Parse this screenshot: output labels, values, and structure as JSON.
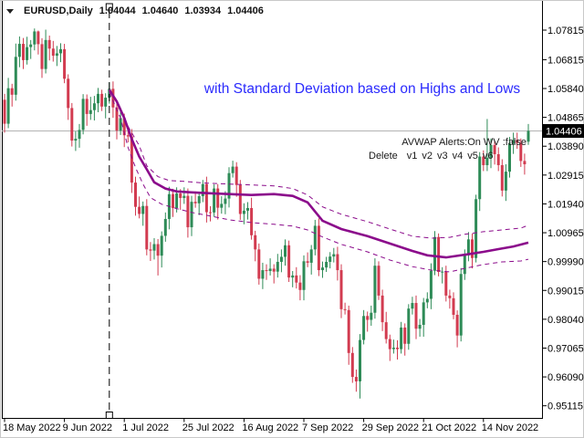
{
  "header": {
    "symbol": "EURUSD,Daily",
    "open": "1.04044",
    "high": "1.04640",
    "low": "1.03934",
    "close": "1.04406"
  },
  "annotation": {
    "text": "with Standard Deviation based on Highs and Lows",
    "color": "#2b2bfd"
  },
  "indicator_panel": {
    "alerts_text": "AVWAP Alerts:On  WV :false",
    "delete_label": "Delete",
    "version_buttons": [
      "v1",
      "v2",
      "v3",
      "v4",
      "v5",
      "v6"
    ]
  },
  "chart_data": {
    "type": "candlestick",
    "title": "EURUSD,Daily",
    "current_price": "1.04406",
    "y_axis": {
      "ticks": [
        "1.07815",
        "1.06815",
        "1.05840",
        "1.04865",
        "1.03890",
        "1.02915",
        "1.01940",
        "1.00965",
        "0.99990",
        "0.99015",
        "0.98040",
        "0.97065",
        "0.96090",
        "0.95115"
      ],
      "ylim": [
        0.94704,
        1.08185
      ]
    },
    "x_axis": {
      "labels": [
        "18 May 2022",
        "9 Jun 2022",
        "1 Jul 2022",
        "25 Jul 2022",
        "16 Aug 2022",
        "7 Sep 2022",
        "29 Sep 2022",
        "21 Oct 2022",
        "14 Nov 2022"
      ],
      "bar_indices": [
        0,
        16,
        32,
        48,
        64,
        80,
        96,
        112,
        128
      ]
    },
    "colors": {
      "up": "#2e8b57",
      "down": "#d23b50",
      "vwap": "#8b0b8b",
      "price_line": "#b3b3b3",
      "price_box_bg": "#000000",
      "price_box_text": "#ffffff",
      "axis": "#000000"
    },
    "anchor_bar": 28,
    "candles": [
      [
        1.0546,
        1.0566,
        1.0435,
        1.0465
      ],
      [
        1.0465,
        1.062,
        1.045,
        1.0585
      ],
      [
        1.0585,
        1.06,
        1.0523,
        1.0563
      ],
      [
        1.0563,
        1.0736,
        1.0543,
        1.0691
      ],
      [
        1.0691,
        1.076,
        1.0656,
        1.0735
      ],
      [
        1.0735,
        1.0755,
        1.065,
        1.068
      ],
      [
        1.068,
        1.0759,
        1.0665,
        1.0724
      ],
      [
        1.0724,
        1.0748,
        1.0684,
        1.0733
      ],
      [
        1.0733,
        1.0787,
        1.0713,
        1.0777
      ],
      [
        1.0777,
        1.078,
        1.0699,
        1.0734
      ],
      [
        1.0734,
        1.0754,
        1.062,
        1.065
      ],
      [
        1.065,
        1.0783,
        1.0635,
        1.0748
      ],
      [
        1.0748,
        1.0763,
        1.0679,
        1.0719
      ],
      [
        1.0719,
        1.0745,
        1.0675,
        1.0695
      ],
      [
        1.0695,
        1.0728,
        1.066,
        1.0703
      ],
      [
        1.0703,
        1.0737,
        1.0673,
        1.0717
      ],
      [
        1.0717,
        1.0735,
        1.0602,
        1.0617
      ],
      [
        1.0617,
        1.0632,
        1.0478,
        1.0518
      ],
      [
        1.0518,
        1.0535,
        1.0388,
        1.0408
      ],
      [
        1.0408,
        1.0439,
        1.0373,
        1.0414
      ],
      [
        1.0414,
        1.0464,
        1.0384,
        1.0444
      ],
      [
        1.0444,
        1.0565,
        1.0429,
        1.0549
      ],
      [
        1.0549,
        1.0564,
        1.0458,
        1.0498
      ],
      [
        1.0498,
        1.0556,
        1.0478,
        1.0511
      ],
      [
        1.0511,
        1.0559,
        1.0476,
        1.0534
      ],
      [
        1.0534,
        1.0586,
        1.0504,
        1.0566
      ],
      [
        1.0566,
        1.058,
        1.0508,
        1.0523
      ],
      [
        1.0523,
        1.0568,
        1.0483,
        1.0553
      ],
      [
        1.0553,
        1.0605,
        1.0533,
        1.0583
      ],
      [
        1.0583,
        1.0608,
        1.0485,
        1.052
      ],
      [
        1.052,
        1.054,
        1.0412,
        1.0442
      ],
      [
        1.0442,
        1.0519,
        1.0427,
        1.0484
      ],
      [
        1.0484,
        1.0499,
        1.0386,
        1.0426
      ],
      [
        1.0426,
        1.0455,
        1.0402,
        1.0422
      ],
      [
        1.0422,
        1.0447,
        1.0231,
        1.0266
      ],
      [
        1.0266,
        1.0286,
        1.0154,
        1.0184
      ],
      [
        1.0184,
        1.0219,
        1.0145,
        1.016
      ],
      [
        1.016,
        1.0202,
        1.012,
        1.0187
      ],
      [
        1.0187,
        1.021,
        1.002,
        1.004
      ],
      [
        1.004,
        1.0065,
        1.0001,
        1.0036
      ],
      [
        1.0036,
        1.0078,
        1.0006,
        1.0058
      ],
      [
        1.0058,
        1.0075,
        0.9952,
        1.0019
      ],
      [
        1.0019,
        1.0101,
        0.9979,
        1.0086
      ],
      [
        1.0086,
        1.0165,
        1.0066,
        1.0143
      ],
      [
        1.0143,
        1.0252,
        1.0108,
        1.0227
      ],
      [
        1.0227,
        1.0245,
        1.015,
        1.018
      ],
      [
        1.018,
        1.025,
        1.0165,
        1.0229
      ],
      [
        1.0229,
        1.0244,
        1.0174,
        1.0214
      ],
      [
        1.0214,
        1.025,
        1.0194,
        1.0221
      ],
      [
        1.0221,
        1.0246,
        1.008,
        1.0115
      ],
      [
        1.0115,
        1.0221,
        1.0085,
        1.0201
      ],
      [
        1.0201,
        1.0236,
        1.0181,
        1.0196
      ],
      [
        1.0196,
        1.0235,
        1.0156,
        1.022
      ],
      [
        1.022,
        1.0275,
        1.02,
        1.0261
      ],
      [
        1.0261,
        1.0286,
        1.0131,
        1.0166
      ],
      [
        1.0166,
        1.0186,
        1.0135,
        1.0165
      ],
      [
        1.0165,
        1.026,
        1.015,
        1.0246
      ],
      [
        1.0246,
        1.0261,
        1.0141,
        1.0181
      ],
      [
        1.0181,
        1.022,
        1.0161,
        1.0194
      ],
      [
        1.0194,
        1.0237,
        1.0159,
        1.0212
      ],
      [
        1.0212,
        1.0318,
        1.0182,
        1.0298
      ],
      [
        1.0298,
        1.034,
        1.0283,
        1.032
      ],
      [
        1.032,
        1.0335,
        1.0218,
        1.0258
      ],
      [
        1.0258,
        1.0275,
        1.014,
        1.016
      ],
      [
        1.016,
        1.0196,
        1.0125,
        1.0171
      ],
      [
        1.0171,
        1.02,
        1.0141,
        1.018
      ],
      [
        1.018,
        1.0215,
        1.0073,
        1.0088
      ],
      [
        1.0088,
        1.0103,
        1.0,
        1.004
      ],
      [
        1.004,
        1.006,
        0.9921,
        0.9941
      ],
      [
        0.9941,
        0.9995,
        0.9906,
        0.997
      ],
      [
        0.997,
        0.999,
        0.9937,
        0.9967
      ],
      [
        0.9967,
        1.001,
        0.9952,
        0.9975
      ],
      [
        0.9975,
        0.999,
        0.9925,
        0.9965
      ],
      [
        0.9965,
        1.0025,
        0.9945,
        0.9998
      ],
      [
        0.9998,
        1.004,
        0.9963,
        1.0015
      ],
      [
        1.0015,
        1.0074,
        0.9985,
        1.0054
      ],
      [
        1.0054,
        1.007,
        0.993,
        0.9945
      ],
      [
        0.9945,
        0.9967,
        0.9912,
        0.9952
      ],
      [
        0.9952,
        0.998,
        0.9908,
        0.9928
      ],
      [
        0.9928,
        0.9953,
        0.9868,
        0.9903
      ],
      [
        0.9903,
        1.002,
        0.9868,
        1.0
      ],
      [
        1.0,
        1.003,
        0.998,
        0.9995
      ],
      [
        0.9995,
        1.0055,
        0.9955,
        1.004
      ],
      [
        1.004,
        1.014,
        1.002,
        1.012
      ],
      [
        1.012,
        1.0145,
        0.995,
        0.997
      ],
      [
        0.997,
        0.9999,
        0.9944,
        0.9979
      ],
      [
        0.9979,
        1.0015,
        0.9964,
        0.9998
      ],
      [
        0.9998,
        1.0031,
        0.9976,
        1.0016
      ],
      [
        1.0016,
        1.0045,
        0.9996,
        1.0024
      ],
      [
        1.0024,
        1.0049,
        0.9935,
        0.997
      ],
      [
        0.997,
        0.999,
        0.9808,
        0.9838
      ],
      [
        0.9838,
        0.986,
        0.982,
        0.9835
      ],
      [
        0.9835,
        0.985,
        0.965,
        0.969
      ],
      [
        0.969,
        0.971,
        0.9589,
        0.9609
      ],
      [
        0.9609,
        0.9634,
        0.9559,
        0.9594
      ],
      [
        0.9594,
        0.9754,
        0.9536,
        0.9734
      ],
      [
        0.9734,
        0.9835,
        0.9719,
        0.9815
      ],
      [
        0.9815,
        0.983,
        0.9762,
        0.9802
      ],
      [
        0.9802,
        0.985,
        0.9782,
        0.9826
      ],
      [
        0.9826,
        1.001,
        0.9806,
        0.9985
      ],
      [
        0.9985,
        1.0,
        0.9869,
        0.9884
      ],
      [
        0.9884,
        0.9904,
        0.9764,
        0.9794
      ],
      [
        0.9794,
        0.9829,
        0.9722,
        0.9737
      ],
      [
        0.9737,
        0.9752,
        0.9663,
        0.9703
      ],
      [
        0.9703,
        0.9735,
        0.9688,
        0.9708
      ],
      [
        0.9708,
        0.9733,
        0.9668,
        0.9703
      ],
      [
        0.9703,
        0.9795,
        0.9688,
        0.9776
      ],
      [
        0.9776,
        0.979,
        0.9681,
        0.9721
      ],
      [
        0.9721,
        0.9855,
        0.9701,
        0.984
      ],
      [
        0.984,
        0.988,
        0.982,
        0.9859
      ],
      [
        0.9859,
        0.9884,
        0.9737,
        0.9772
      ],
      [
        0.9772,
        0.9805,
        0.9745,
        0.9785
      ],
      [
        0.9785,
        0.9876,
        0.9745,
        0.9861
      ],
      [
        0.9861,
        0.9895,
        0.9841,
        0.9873
      ],
      [
        0.9873,
        0.9993,
        0.9838,
        0.9968
      ],
      [
        0.9968,
        1.0102,
        0.9953,
        1.0082
      ],
      [
        1.0082,
        1.0094,
        0.9949,
        0.9964
      ],
      [
        0.9964,
        0.998,
        0.9925,
        0.9965
      ],
      [
        0.9965,
        0.9985,
        0.9864,
        0.9884
      ],
      [
        0.9884,
        0.9904,
        0.984,
        0.9875
      ],
      [
        0.9875,
        0.9895,
        0.9804,
        0.9819
      ],
      [
        0.9819,
        0.9834,
        0.9709,
        0.9749
      ],
      [
        0.9749,
        0.9977,
        0.9729,
        0.9957
      ],
      [
        0.9957,
        1.004,
        0.9937,
        1.002
      ],
      [
        1.002,
        1.0099,
        1.0,
        1.0074
      ],
      [
        1.0074,
        1.0094,
        0.9976,
        1.0011
      ],
      [
        1.0011,
        1.0225,
        0.9996,
        1.021
      ],
      [
        1.021,
        1.0369,
        1.017,
        1.0354
      ],
      [
        1.0354,
        1.0375,
        1.0305,
        1.0325
      ],
      [
        1.0325,
        1.0481,
        1.0305,
        1.035
      ],
      [
        1.035,
        1.0415,
        1.0315,
        1.0393
      ],
      [
        1.0393,
        1.0408,
        1.0327,
        1.0362
      ],
      [
        1.0362,
        1.0385,
        1.0305,
        1.0325
      ],
      [
        1.0325,
        1.0345,
        1.0219,
        1.0239
      ],
      [
        1.0239,
        1.0328,
        1.0204,
        1.0303
      ],
      [
        1.0303,
        1.042,
        1.0283,
        1.0398
      ],
      [
        1.0398,
        1.0435,
        1.0363,
        1.041
      ],
      [
        1.041,
        1.0435,
        1.038,
        1.04
      ],
      [
        1.04,
        1.0415,
        1.0319,
        1.0339
      ],
      [
        1.0339,
        1.0364,
        1.0293,
        1.0328
      ],
      [
        1.04044,
        1.0464,
        1.03934,
        1.04406
      ]
    ],
    "vwap": [
      [
        28,
        1.058
      ],
      [
        30,
        1.054
      ],
      [
        32,
        1.0484
      ],
      [
        34,
        1.0413
      ],
      [
        36,
        1.0354
      ],
      [
        38,
        1.0311
      ],
      [
        40,
        1.0267
      ],
      [
        43,
        1.0246
      ],
      [
        46,
        1.0236
      ],
      [
        50,
        1.0233
      ],
      [
        55,
        1.023
      ],
      [
        60,
        1.0227
      ],
      [
        66,
        1.0224
      ],
      [
        72,
        1.0227
      ],
      [
        77,
        1.0221
      ],
      [
        81,
        1.0199
      ],
      [
        85,
        1.0137
      ],
      [
        90,
        1.0109
      ],
      [
        97,
        1.0085
      ],
      [
        103,
        1.006
      ],
      [
        109,
        1.0035
      ],
      [
        113,
        1.002
      ],
      [
        118,
        1.0013
      ],
      [
        123,
        1.0022
      ],
      [
        128,
        1.0032
      ],
      [
        132,
        1.0041
      ],
      [
        136,
        1.005
      ],
      [
        140,
        1.0063
      ]
    ],
    "upper_band": [
      [
        28,
        1.058
      ],
      [
        31,
        1.0518
      ],
      [
        33,
        1.0456
      ],
      [
        36,
        1.0391
      ],
      [
        38,
        1.0323
      ],
      [
        41,
        1.0286
      ],
      [
        44,
        1.0273
      ],
      [
        48,
        1.027
      ],
      [
        54,
        1.0264
      ],
      [
        60,
        1.0261
      ],
      [
        66,
        1.0258
      ],
      [
        72,
        1.0255
      ],
      [
        77,
        1.0246
      ],
      [
        81,
        1.0224
      ],
      [
        85,
        1.0184
      ],
      [
        90,
        1.0159
      ],
      [
        97,
        1.0134
      ],
      [
        103,
        1.0109
      ],
      [
        109,
        1.0085
      ],
      [
        114,
        1.0078
      ],
      [
        119,
        1.0081
      ],
      [
        123,
        1.0091
      ],
      [
        128,
        1.01
      ],
      [
        133,
        1.0106
      ],
      [
        138,
        1.0112
      ],
      [
        140,
        1.0122
      ]
    ],
    "lower_band": [
      [
        28,
        1.0571
      ],
      [
        31,
        1.0484
      ],
      [
        33,
        1.0385
      ],
      [
        35,
        1.0317
      ],
      [
        37,
        1.0261
      ],
      [
        39,
        1.0215
      ],
      [
        42,
        1.0193
      ],
      [
        46,
        1.0178
      ],
      [
        50,
        1.0165
      ],
      [
        55,
        1.0153
      ],
      [
        60,
        1.014
      ],
      [
        66,
        1.0131
      ],
      [
        72,
        1.0125
      ],
      [
        77,
        1.0119
      ],
      [
        81,
        1.0106
      ],
      [
        85,
        1.0082
      ],
      [
        90,
        1.0057
      ],
      [
        97,
        1.0032
      ],
      [
        103,
        1.0004
      ],
      [
        109,
        0.9982
      ],
      [
        114,
        0.997
      ],
      [
        119,
        0.9964
      ],
      [
        123,
        0.9976
      ],
      [
        128,
        0.9989
      ],
      [
        133,
        0.9998
      ],
      [
        138,
        1.0001
      ],
      [
        140,
        1.0007
      ]
    ]
  }
}
